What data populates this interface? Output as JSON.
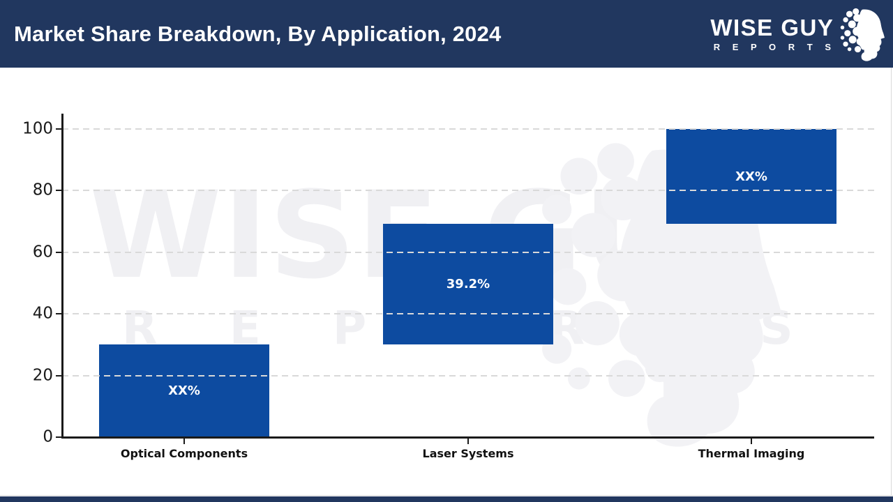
{
  "header": {
    "title": "Market Share Breakdown, By Application, 2024",
    "logo": {
      "line1": "WISE GUY",
      "line2": "R E P O R T S",
      "icon": "wise-guy-face-icon"
    }
  },
  "watermark": {
    "line1": "WISE GUY",
    "line2": "R E P O R T S",
    "icon": "wise-guy-face-icon"
  },
  "colors": {
    "header_bg": "#21375f",
    "footer_bg": "#21375f",
    "bar": "#0d4ba0",
    "grid": "#d9d9d9",
    "axis": "#1a1a1a",
    "bar_label": "#ffffff",
    "text": "#111111",
    "watermark": "#f0f0f3"
  },
  "chart_data": {
    "type": "bar",
    "subtype": "waterfall",
    "title": "Market Share Breakdown, By Application, 2024",
    "categories": [
      "Optical Components",
      "Laser Systems",
      "Thermal Imaging"
    ],
    "segments": [
      {
        "category": "Optical Components",
        "start": 0,
        "end": 30,
        "label": "XX%"
      },
      {
        "category": "Laser Systems",
        "start": 30,
        "end": 69.2,
        "label": "39.2%"
      },
      {
        "category": "Thermal Imaging",
        "start": 69.2,
        "end": 100,
        "label": "XX%"
      }
    ],
    "xlabel": "",
    "ylabel": "",
    "yticks": [
      0,
      20,
      40,
      60,
      80,
      100
    ],
    "ylim": [
      0,
      105
    ],
    "grid": "horizontal-dashed",
    "legend": "none",
    "bar_color": "#0d4ba0"
  }
}
